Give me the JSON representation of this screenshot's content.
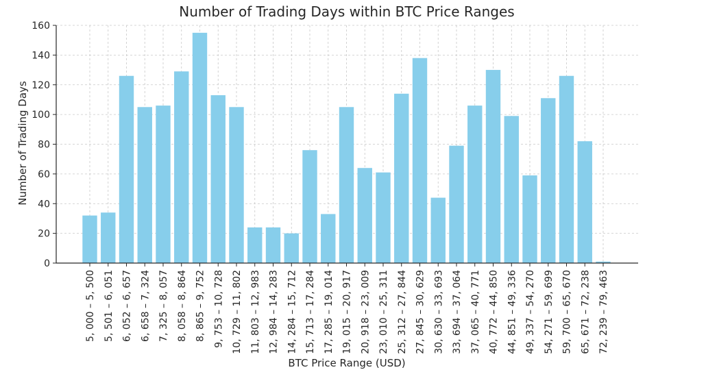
{
  "chart_data": {
    "type": "bar",
    "title": "Number of Trading Days within BTC Price Ranges",
    "xlabel": "BTC Price Range (USD)",
    "ylabel": "Number of Trading Days",
    "ylim": [
      0,
      160
    ],
    "yticks": [
      0,
      20,
      40,
      60,
      80,
      100,
      120,
      140,
      160
    ],
    "grid": true,
    "bar_color": "#87ceeb",
    "categories": [
      "5, 000 – 5, 500",
      "5, 501 – 6, 051",
      "6, 052 – 6, 657",
      "6, 658 – 7, 324",
      "7, 325 – 8, 057",
      "8, 058 – 8, 864",
      "8, 865 – 9, 752",
      "9, 753 – 10, 728",
      "10, 729 – 11, 802",
      "11, 803 – 12, 983",
      "12, 984 – 14, 283",
      "14, 284 – 15, 712",
      "15, 713 – 17, 284",
      "17, 285 – 19, 014",
      "19, 015 – 20, 917",
      "20, 918 – 23, 009",
      "23, 010 – 25, 311",
      "25, 312 – 27, 844",
      "27, 845 – 30, 629",
      "30, 630 – 33, 693",
      "33, 694 – 37, 064",
      "37, 065 – 40, 771",
      "40, 772 – 44, 850",
      "44, 851 – 49, 336",
      "49, 337 – 54, 270",
      "54, 271 – 59, 699",
      "59, 700 – 65, 670",
      "65, 671 – 72, 238",
      "72, 239 – 79, 463"
    ],
    "values": [
      32,
      34,
      126,
      105,
      106,
      129,
      155,
      113,
      105,
      24,
      24,
      20,
      76,
      33,
      105,
      64,
      61,
      114,
      138,
      44,
      79,
      106,
      130,
      99,
      59,
      111,
      126,
      82,
      1
    ]
  }
}
